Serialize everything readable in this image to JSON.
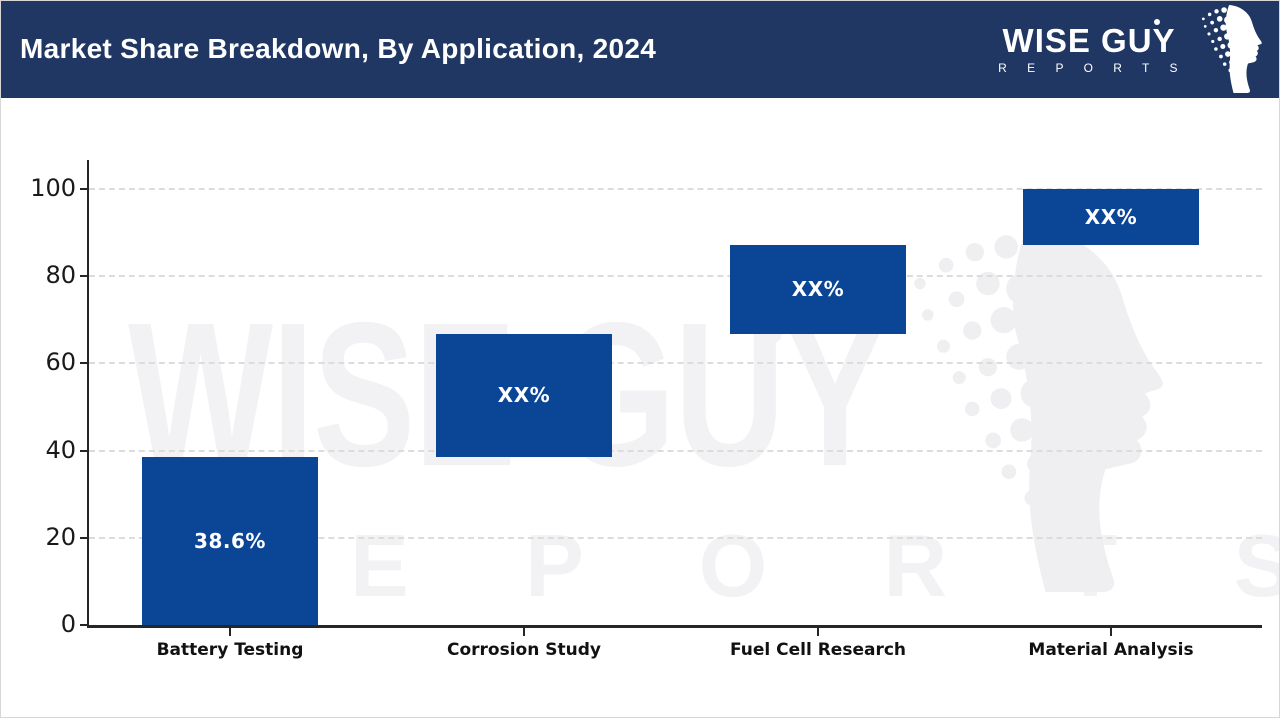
{
  "header": {
    "title": "Market Share Breakdown, By Application, 2024",
    "logo": {
      "line1": "WISE GUY",
      "line2": "R E P O R T S"
    }
  },
  "watermark": {
    "line1": "WISE GUY",
    "line2": "R E P O R T S"
  },
  "chart_data": {
    "type": "bar",
    "subtype": "waterfall",
    "title": "Market Share Breakdown, By Application, 2024",
    "categories": [
      "Battery Testing",
      "Corrosion Study",
      "Fuel Cell Research",
      "Material Analysis"
    ],
    "series": [
      {
        "name": "Market share (%)",
        "segment_start": [
          0,
          38.6,
          66.7,
          87.2
        ],
        "segment_end": [
          38.6,
          66.7,
          87.2,
          100
        ]
      }
    ],
    "bar_labels": [
      "38.6%",
      "XX%",
      "XX%",
      "XX%"
    ],
    "xlabel": "",
    "ylabel": "",
    "yticks": [
      0,
      20,
      40,
      60,
      80,
      100
    ],
    "ylim": [
      0,
      105
    ],
    "grid": {
      "axis": "y",
      "style": "dashed"
    },
    "legend": "none",
    "bar_color": "#0B4596",
    "value_label_color": "#FFFFFF",
    "header_color": "#203763"
  }
}
